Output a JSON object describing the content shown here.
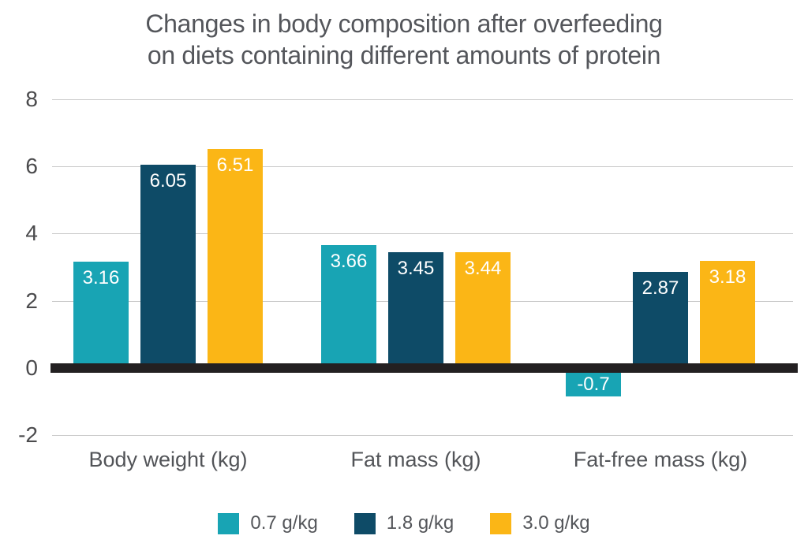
{
  "title": {
    "line1": "Changes in body composition after overfeeding",
    "line2": "on diets containing different amounts of protein"
  },
  "chart_data": {
    "type": "bar",
    "title": "Changes in body composition after overfeeding on diets containing different amounts of protein",
    "categories": [
      "Body weight (kg)",
      "Fat mass (kg)",
      "Fat-free mass (kg)"
    ],
    "series": [
      {
        "name": "0.7 g/kg",
        "color": "#18A4B4",
        "values": [
          3.16,
          3.66,
          -0.7
        ]
      },
      {
        "name": "1.8 g/kg",
        "color": "#0E4B67",
        "values": [
          6.05,
          3.45,
          2.87
        ]
      },
      {
        "name": "3.0 g/kg",
        "color": "#FBB616",
        "values": [
          6.51,
          3.44,
          3.18
        ]
      }
    ],
    "y_ticks": [
      8,
      6,
      4,
      2,
      0,
      -2
    ],
    "ylim": [
      -2.5,
      8.5
    ],
    "grid": true,
    "legend_position": "bottom",
    "value_label_color": "#ffffff",
    "gridline_color": "#c9c9c9",
    "zero_axis_color": "#232021"
  }
}
